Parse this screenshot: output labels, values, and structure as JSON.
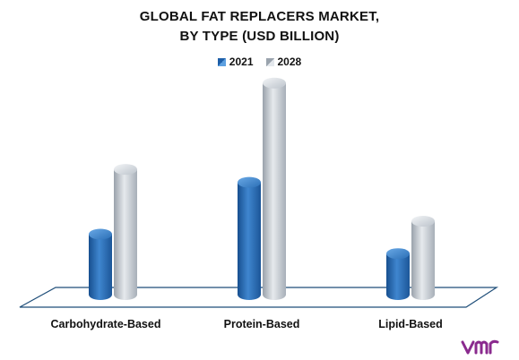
{
  "chart_data": {
    "type": "bar",
    "title_lines": [
      "GLOBAL FAT REPLACERS MARKET,",
      "BY TYPE (USD BILLION)"
    ],
    "categories": [
      "Carbohydrate-Based",
      "Protein-Based",
      "Lipid-Based"
    ],
    "series": [
      {
        "name": "2021",
        "values": [
          1.4,
          2.6,
          0.95
        ],
        "color": "#2a6fb8"
      },
      {
        "name": "2028",
        "values": [
          2.9,
          4.9,
          1.7
        ],
        "color": "#b9c0c8"
      }
    ],
    "ylim": [
      0,
      5.6
    ],
    "grid": false,
    "legend_position": "top-center"
  },
  "branding": {
    "logo_icon": "vmr-logo-icon",
    "logo_color": "#8a2a8e"
  }
}
